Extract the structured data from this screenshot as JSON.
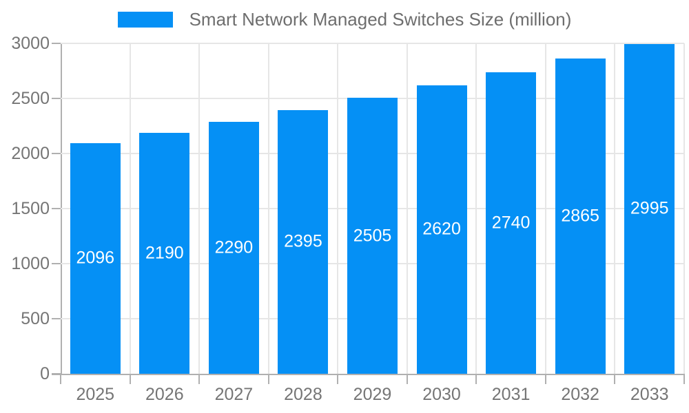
{
  "chart_data": {
    "type": "bar",
    "title": "Smart Network Managed Switches Size (million)",
    "categories": [
      "2025",
      "2026",
      "2027",
      "2028",
      "2029",
      "2030",
      "2031",
      "2032",
      "2033"
    ],
    "values": [
      2096,
      2190,
      2290,
      2395,
      2505,
      2620,
      2740,
      2865,
      2995
    ],
    "xlabel": "",
    "ylabel": "",
    "ylim": [
      0,
      3000
    ],
    "yticks": [
      0,
      500,
      1000,
      1500,
      2000,
      2500,
      3000
    ],
    "grid": true,
    "legend_position": "top-center",
    "value_labels": "inside-bar-center",
    "colors": {
      "bar": "#0590f5",
      "grid": "#e6e6e6",
      "axis": "#b0b0b0",
      "tick_label": "#757575",
      "title": "#6e6e6e",
      "value_label": "#ffffff",
      "background": "#ffffff"
    }
  }
}
